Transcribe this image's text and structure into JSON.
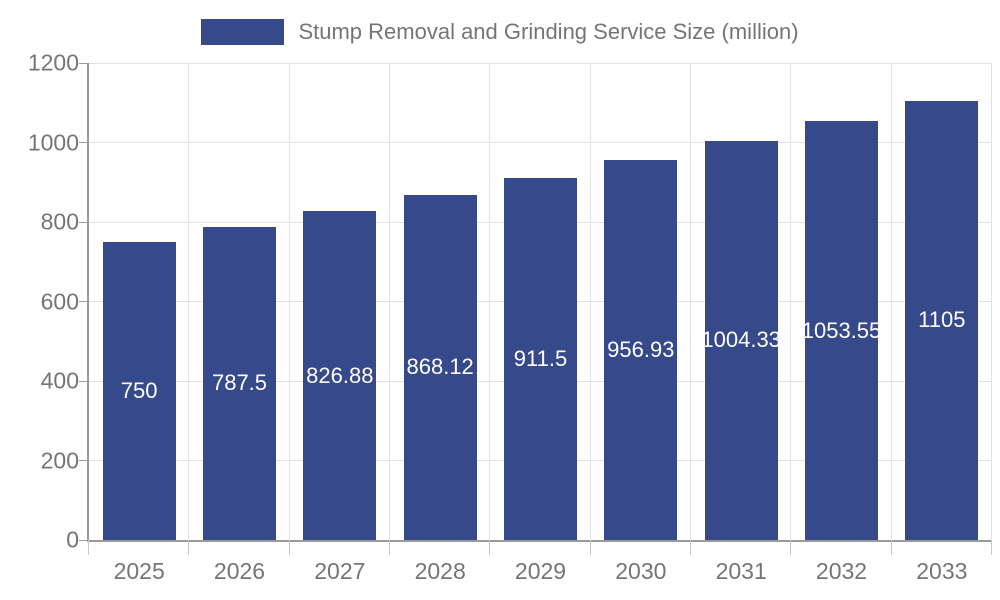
{
  "legend": {
    "label": "Stump Removal and Grinding Service Size (million)"
  },
  "colors": {
    "bar": "#36498B",
    "bar_label_text": "#ffffff",
    "axis_text": "#757575",
    "axis_line": "#9a9a9a",
    "gridline": "#e2e2e5"
  },
  "chart_data": {
    "type": "bar",
    "title": "Stump Removal and Grinding Service Size (million)",
    "categories": [
      "2025",
      "2026",
      "2027",
      "2028",
      "2029",
      "2030",
      "2031",
      "2032",
      "2033"
    ],
    "values": [
      750,
      787.5,
      826.88,
      868.12,
      911.5,
      956.93,
      1004.33,
      1053.55,
      1105
    ],
    "value_labels": [
      "750",
      "787.5",
      "826.88",
      "868.12",
      "911.5",
      "956.93",
      "1004.33",
      "1053.55",
      "1105"
    ],
    "xlabel": "",
    "ylabel": "",
    "ylim": [
      0,
      1200
    ],
    "yticks": [
      0,
      200,
      400,
      600,
      800,
      1000,
      1200
    ],
    "grid": true,
    "legend_position": "top",
    "value_label_position": "inside-center"
  }
}
